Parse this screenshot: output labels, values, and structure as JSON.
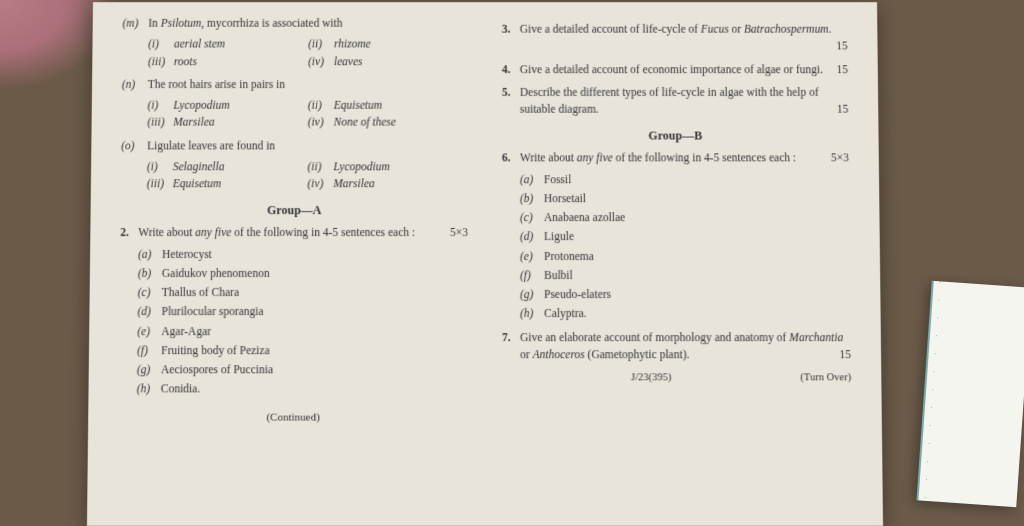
{
  "left_col": {
    "mcq": [
      {
        "num": "(m)",
        "text": "In <i>Psilotum</i>, mycorrhiza is associated with",
        "options": [
          {
            "n": "(i)",
            "t": "aerial stem"
          },
          {
            "n": "(ii)",
            "t": "rhizome"
          },
          {
            "n": "(iii)",
            "t": "roots"
          },
          {
            "n": "(iv)",
            "t": "leaves"
          }
        ]
      },
      {
        "num": "(n)",
        "text": "The root hairs arise in pairs in",
        "options": [
          {
            "n": "(i)",
            "t": "Lycopodium"
          },
          {
            "n": "(ii)",
            "t": "Equisetum"
          },
          {
            "n": "(iii)",
            "t": "Marsilea"
          },
          {
            "n": "(iv)",
            "t": "None of these"
          }
        ]
      },
      {
        "num": "(o)",
        "text": "Ligulate leaves are found in",
        "options": [
          {
            "n": "(i)",
            "t": "Selaginella"
          },
          {
            "n": "(ii)",
            "t": "Lycopodium"
          },
          {
            "n": "(iii)",
            "t": "Equisetum"
          },
          {
            "n": "(iv)",
            "t": "Marsilea"
          }
        ]
      }
    ],
    "group_header": "Group—A",
    "q2": {
      "num": "2.",
      "text": "Write about <i>any five</i> of the following in 4-5 sentences each :",
      "marks": "5×3",
      "items": [
        {
          "n": "(a)",
          "t": "Heterocyst"
        },
        {
          "n": "(b)",
          "t": "Gaidukov phenomenon"
        },
        {
          "n": "(c)",
          "t": "Thallus of Chara"
        },
        {
          "n": "(d)",
          "t": "Plurilocular sporangia"
        },
        {
          "n": "(e)",
          "t": "Agar-Agar"
        },
        {
          "n": "(f)",
          "t": "Fruiting body of Peziza"
        },
        {
          "n": "(g)",
          "t": "Aeciospores of Puccinia"
        },
        {
          "n": "(h)",
          "t": "Conidia."
        }
      ]
    },
    "footer": "(Continued)"
  },
  "right_col": {
    "q3": {
      "num": "3.",
      "text": "Give a detailed account of life-cycle of <i>Fucus</i> or <i>Batrachospermum</i>.",
      "marks": "15"
    },
    "q4": {
      "num": "4.",
      "text": "Give a detailed account of economic importance of algae or fungi.",
      "marks": "15"
    },
    "q5": {
      "num": "5.",
      "text": "Describe the different types of life-cycle in algae with the help of suitable diagram.",
      "marks": "15"
    },
    "group_header": "Group—B",
    "q6": {
      "num": "6.",
      "text": "Write about <i>any five</i> of the following in 4-5 sentences each :",
      "marks": "5×3",
      "items": [
        {
          "n": "(a)",
          "t": "Fossil"
        },
        {
          "n": "(b)",
          "t": "Horsetail"
        },
        {
          "n": "(c)",
          "t": "Anabaena azollae"
        },
        {
          "n": "(d)",
          "t": "Ligule"
        },
        {
          "n": "(e)",
          "t": "Protonema"
        },
        {
          "n": "(f)",
          "t": "Bulbil"
        },
        {
          "n": "(g)",
          "t": "Pseudo-elaters"
        },
        {
          "n": "(h)",
          "t": "Calyptra."
        }
      ]
    },
    "q7": {
      "num": "7.",
      "text": "Give an elaborate account of morphology and anatomy of <i>Marchantia</i> or <i>Anthoceros</i> (Gametophytic plant).",
      "marks": "15"
    },
    "page_code": "J/23(395)",
    "turn_over": "(Turn Over)"
  }
}
